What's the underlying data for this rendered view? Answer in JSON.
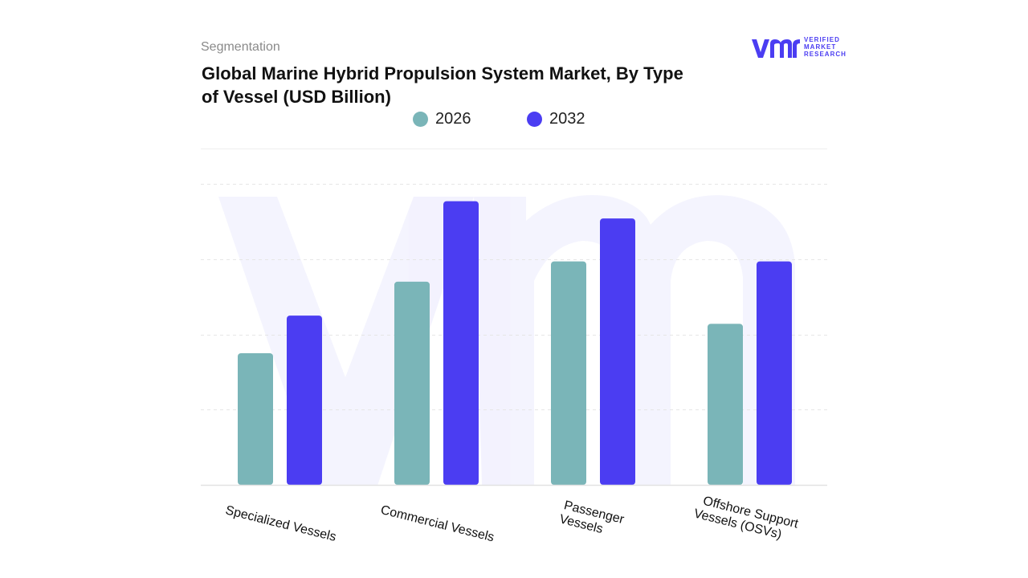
{
  "header": {
    "section_label": "Segmentation",
    "title": "Global Marine Hybrid Propulsion System Market, By Type of Vessel (USD Billion)"
  },
  "brand": {
    "line1": "VERIFIED",
    "line2": "MARKET",
    "line3": "RESEARCH",
    "mark": "vmr",
    "color": "#4b3df2"
  },
  "chart_data": {
    "type": "bar",
    "categories": [
      "Specialized Vessels",
      "Commercial Vessels",
      "Passenger Vessels",
      "Offshore Support Vessels (OSVs)"
    ],
    "series": [
      {
        "name": "2026",
        "color": "#7ab5b8",
        "values": [
          1.75,
          2.7,
          2.97,
          2.14
        ]
      },
      {
        "name": "2032",
        "color": "#4b3df2",
        "values": [
          2.25,
          3.77,
          3.54,
          2.97
        ]
      }
    ],
    "ylim": [
      0,
      4
    ],
    "grid": true,
    "legend": "top-center",
    "title": "Global Marine Hybrid Propulsion System Market, By Type of Vessel (USD Billion)"
  }
}
